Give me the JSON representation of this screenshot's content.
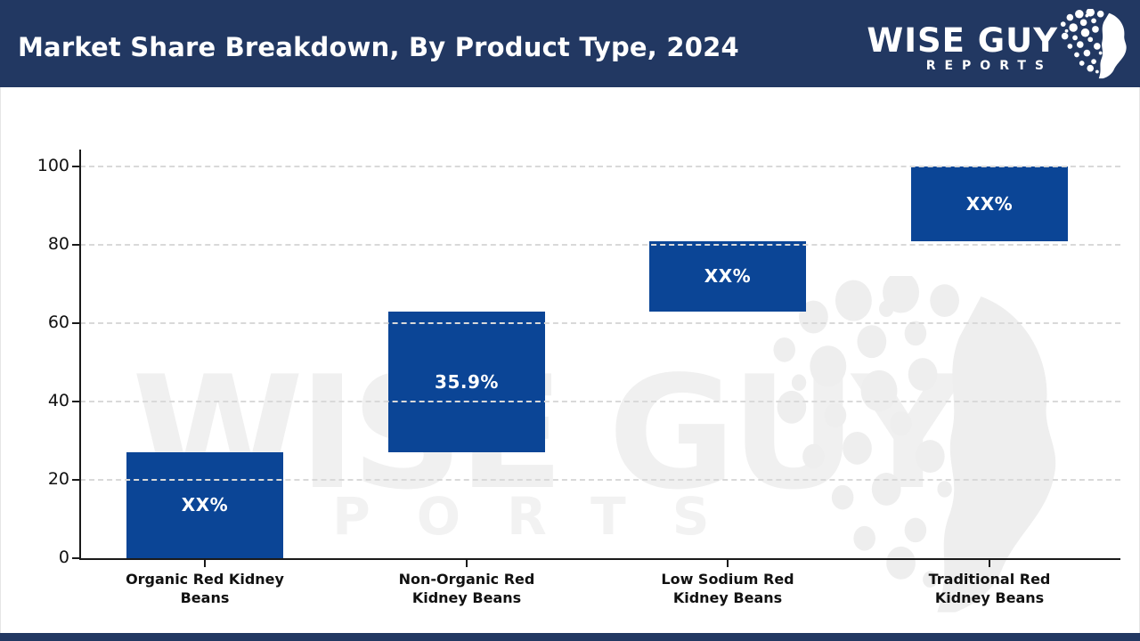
{
  "header": {
    "title": "Market Share Breakdown, By Product Type, 2024",
    "bg_color": "#223862",
    "logo": {
      "line1": "WISE GUY",
      "line2": "REPORTS"
    }
  },
  "watermark": {
    "line1": "WISE GUY",
    "line2": "REPORTS"
  },
  "chart_data": {
    "type": "bar",
    "subtype": "floating-segment-waterfall",
    "title": "Market Share Breakdown, By Product Type, 2024",
    "xlabel": "",
    "ylabel": "",
    "ylim": [
      0,
      104
    ],
    "y_ticks": [
      0,
      20,
      40,
      60,
      80,
      100
    ],
    "grid": "horizontal-dashed",
    "legend": "none",
    "bar_color": "#0b4596",
    "category_names": [
      "Organic Red Kidney Beans",
      "Non-Organic Red Kidney Beans",
      "Low Sodium Red Kidney Beans",
      "Traditional Red Kidney Beans"
    ],
    "categories": [
      [
        "Organic Red Kidney",
        "Beans"
      ],
      [
        "Non-Organic Red",
        "Kidney Beans"
      ],
      [
        "Low Sodium Red",
        "Kidney Beans"
      ],
      [
        "Traditional Red",
        "Kidney Beans"
      ]
    ],
    "segments": [
      {
        "category": "Organic Red Kidney Beans",
        "start": 0,
        "end": 27.1,
        "label": "XX%"
      },
      {
        "category": "Non-Organic Red Kidney Beans",
        "start": 27.1,
        "end": 63.0,
        "label": "35.9%",
        "value": 35.9
      },
      {
        "category": "Low Sodium Red Kidney Beans",
        "start": 63.0,
        "end": 81.0,
        "label": "XX%"
      },
      {
        "category": "Traditional Red Kidney Beans",
        "start": 81.0,
        "end": 100.0,
        "label": "XX%"
      }
    ]
  }
}
